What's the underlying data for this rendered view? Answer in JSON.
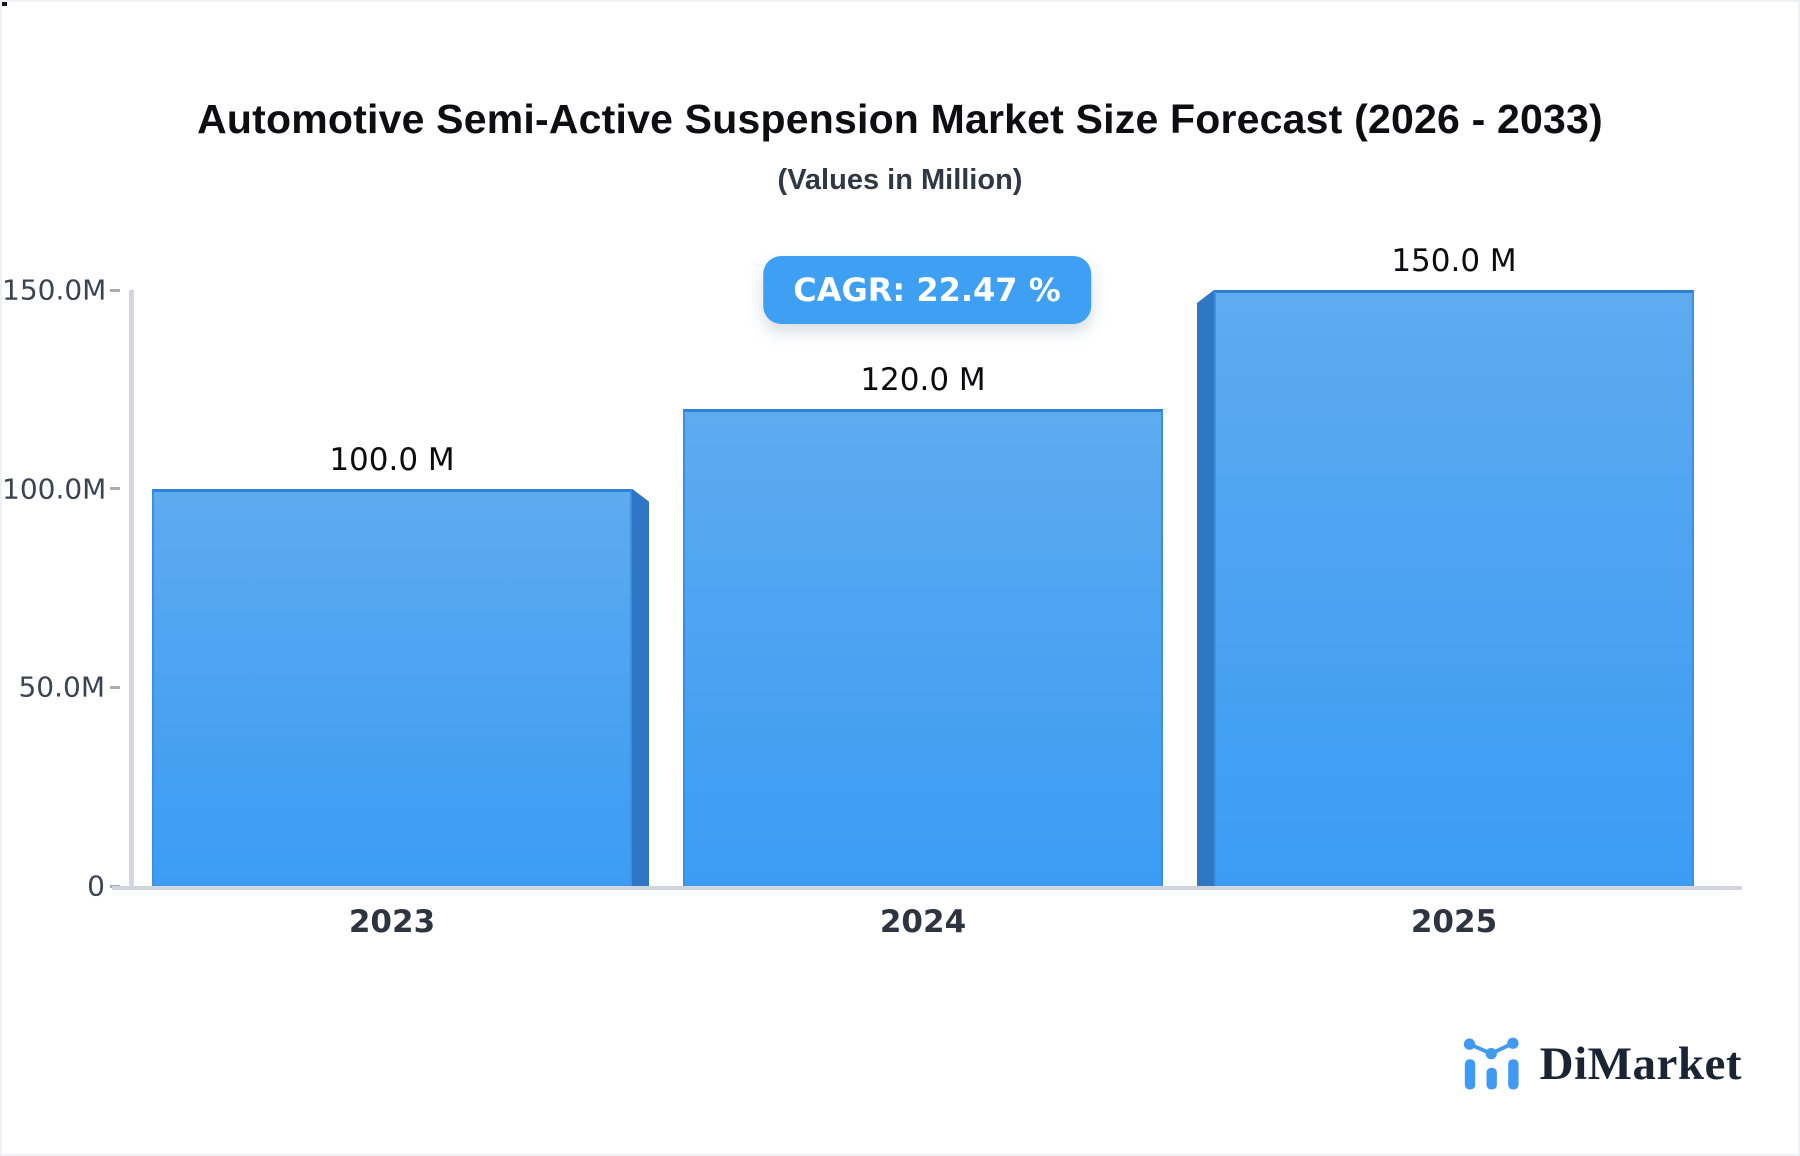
{
  "title": "Automotive Semi-Active Suspension Market Size Forecast (2026 - 2033)",
  "subtitle": "(Values in Million)",
  "cagr_badge": "CAGR: 22.47 %",
  "chart_data": {
    "type": "bar",
    "categories": [
      "2023",
      "2024",
      "2025"
    ],
    "values": [
      100,
      120,
      150
    ],
    "value_labels": [
      "100.0 M",
      "120.0 M",
      "150.0 M"
    ],
    "title": "Automotive Semi-Active Suspension Market Size Forecast (2026 - 2033)",
    "subtitle": "(Values in Million)",
    "unit": "Million",
    "xlabel": "",
    "ylabel": "",
    "ylim": [
      0,
      150
    ],
    "yticks": [
      {
        "label": "150.0M",
        "value": 150
      },
      {
        "label": "100.0M",
        "value": 100
      },
      {
        "label": "50.0M",
        "value": 50
      },
      {
        "label": "0",
        "value": 0
      }
    ],
    "grid": false,
    "legend": "none",
    "shadow_side": [
      "right",
      "none",
      "left"
    ],
    "bar_color_top": "#5EABF0",
    "bar_color_bottom": "#3C9CF4",
    "bar_edge_color": "#2E82D6",
    "bar_shadow_color": "#2D77C4"
  },
  "colors": {
    "badge_bg": "#3E9FF3",
    "badge_text": "#FFFFFF",
    "axis_line": "#D5D7DF",
    "baseline": "#D3D5DD",
    "tick_text": "#3C4454",
    "category_text": "#2E3440",
    "value_label_text": "#0B0B0F",
    "title_text": "#0D0D12",
    "subtitle_text": "#303846",
    "brand_text": "#1B2433",
    "brand_icon": "#4199F0"
  },
  "brand": {
    "name": "DiMarket",
    "icon": "bar-line-chart-icon"
  }
}
